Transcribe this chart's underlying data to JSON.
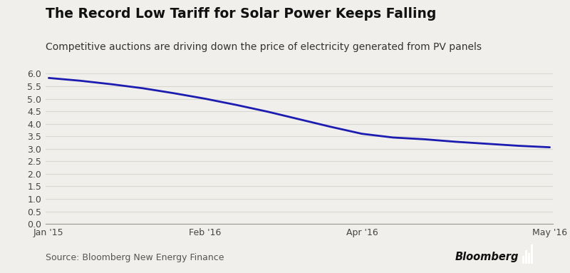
{
  "title": "The Record Low Tariff for Solar Power Keeps Falling",
  "subtitle": "Competitive auctions are driving down the price of electricity generated from PV panels",
  "source_text": "Source: Bloomberg New Energy Finance",
  "bloomberg_text": "Bloomberg",
  "line_color": "#1c1cb0",
  "line_width": 2.0,
  "background_color": "#f0efeb",
  "x_values": [
    0,
    1,
    2,
    3,
    4,
    5,
    6,
    7,
    8,
    9,
    10,
    11,
    12,
    13,
    14,
    15,
    16
  ],
  "y_values": [
    5.83,
    5.72,
    5.58,
    5.42,
    5.22,
    5.0,
    4.75,
    4.48,
    4.18,
    3.88,
    3.6,
    3.45,
    3.38,
    3.28,
    3.2,
    3.12,
    3.06
  ],
  "x_tick_positions": [
    0,
    5,
    10,
    16
  ],
  "x_tick_labels": [
    "Jan '15",
    "Feb '16",
    "Apr '16",
    "May '16"
  ],
  "y_min": 0.0,
  "y_max": 6.0,
  "y_tick_step": 0.5,
  "title_fontsize": 13.5,
  "subtitle_fontsize": 10,
  "tick_fontsize": 9,
  "source_fontsize": 9,
  "grid_color": "#d8d8d0",
  "bottom_spine_color": "#999990"
}
